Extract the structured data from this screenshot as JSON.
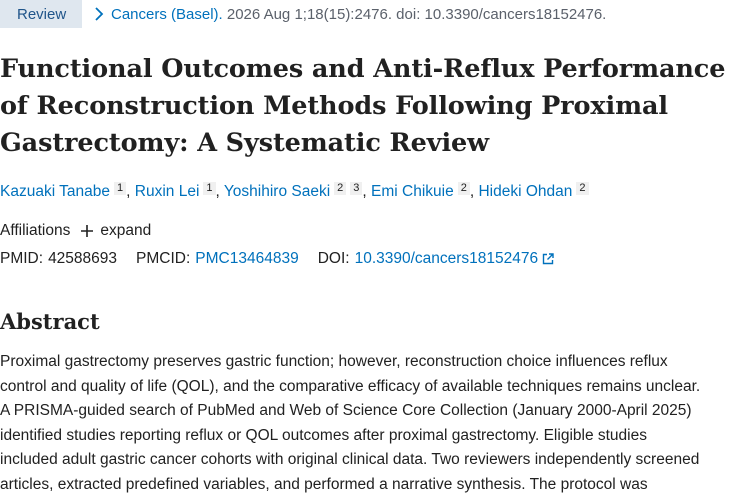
{
  "citation": {
    "badge": "Review",
    "journal": "Cancers (Basel).",
    "details": "2026 Aug 1;18(15):2476. doi: 10.3390/cancers18152476."
  },
  "title_lines": [
    "Functional Outcomes and Anti-Reflux Performance",
    "of Reconstruction Methods Following Proximal",
    "Gastrectomy: A Systematic Review"
  ],
  "authors": [
    {
      "name": "Kazuaki Tanabe",
      "affils": [
        "1"
      ]
    },
    {
      "name": "Ruxin Lei",
      "affils": [
        "1"
      ]
    },
    {
      "name": "Yoshihiro Saeki",
      "affils": [
        "2",
        "3"
      ]
    },
    {
      "name": "Emi Chikuie",
      "affils": [
        "2"
      ]
    },
    {
      "name": "Hideki Ohdan",
      "affils": [
        "2"
      ]
    }
  ],
  "affiliations": {
    "label": "Affiliations",
    "expand": "expand"
  },
  "ids": {
    "pmid_label": "PMID:",
    "pmid": "42588693",
    "pmcid_label": "PMCID:",
    "pmcid": "PMC13464839",
    "doi_label": "DOI:",
    "doi": "10.3390/cancers18152476"
  },
  "abstract_heading": "Abstract",
  "abstract_lines": [
    "Proximal gastrectomy preserves gastric function; however, reconstruction choice influences reflux",
    "control and quality of life (QOL), and the comparative efficacy of available techniques remains unclear.",
    "A PRISMA-guided search of PubMed and Web of Science Core Collection (January 2000-April 2025)",
    "identified studies reporting reflux or QOL outcomes after proximal gastrectomy. Eligible studies",
    "included adult gastric cancer cohorts with original clinical data. Two reviewers independently screened",
    "articles, extracted predefined variables, and performed a narrative synthesis. The protocol was"
  ]
}
